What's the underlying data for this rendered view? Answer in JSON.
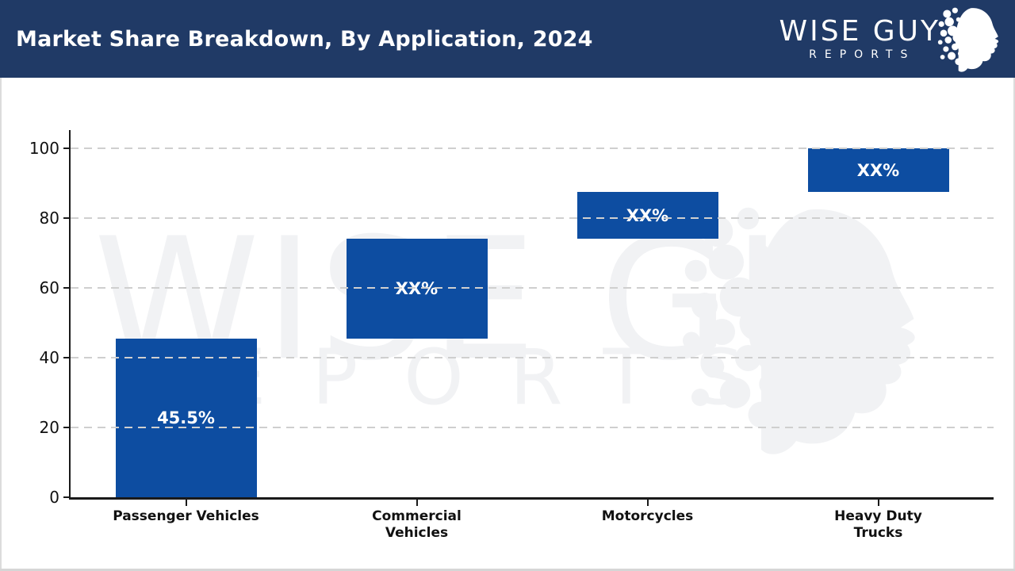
{
  "header": {
    "title": "Market Share Breakdown, By Application, 2024",
    "logo": {
      "line1": "WISE GUY",
      "line2": "REPORTS",
      "icon": "dotted-head-profile-icon"
    }
  },
  "watermark": {
    "line1": "WISE GU",
    "line2": "REPORTS",
    "icon": "dotted-head-profile-icon"
  },
  "colors": {
    "header_bg": "#203a66",
    "bar": "#0d4da1",
    "bar_label": "#ffffff",
    "gridline": "#cfcfcf",
    "axis": "#1a1a1a",
    "watermark": "#f1f2f4",
    "page_border": "#d9d9d9"
  },
  "chart_data": {
    "type": "bar",
    "subtype": "waterfall",
    "title": "Market Share Breakdown, By Application, 2024",
    "xlabel": "",
    "ylabel": "",
    "categories": [
      "Passenger Vehicles",
      "Commercial\nVehicles",
      "Motorcycles",
      "Heavy Duty Trucks"
    ],
    "segments": [
      {
        "category": "Passenger Vehicles",
        "label": "45.5%",
        "start": 0,
        "end": 45.5
      },
      {
        "category": "Commercial Vehicles",
        "label": "XX%",
        "start": 45.5,
        "end": 74
      },
      {
        "category": "Motorcycles",
        "label": "XX%",
        "start": 74,
        "end": 87.5
      },
      {
        "category": "Heavy Duty Trucks",
        "label": "XX%",
        "start": 87.5,
        "end": 100
      }
    ],
    "yticks": [
      0,
      20,
      40,
      60,
      80,
      100
    ],
    "ylim": [
      0,
      105
    ],
    "grid": "dashed-horizontal",
    "legend": "none"
  }
}
